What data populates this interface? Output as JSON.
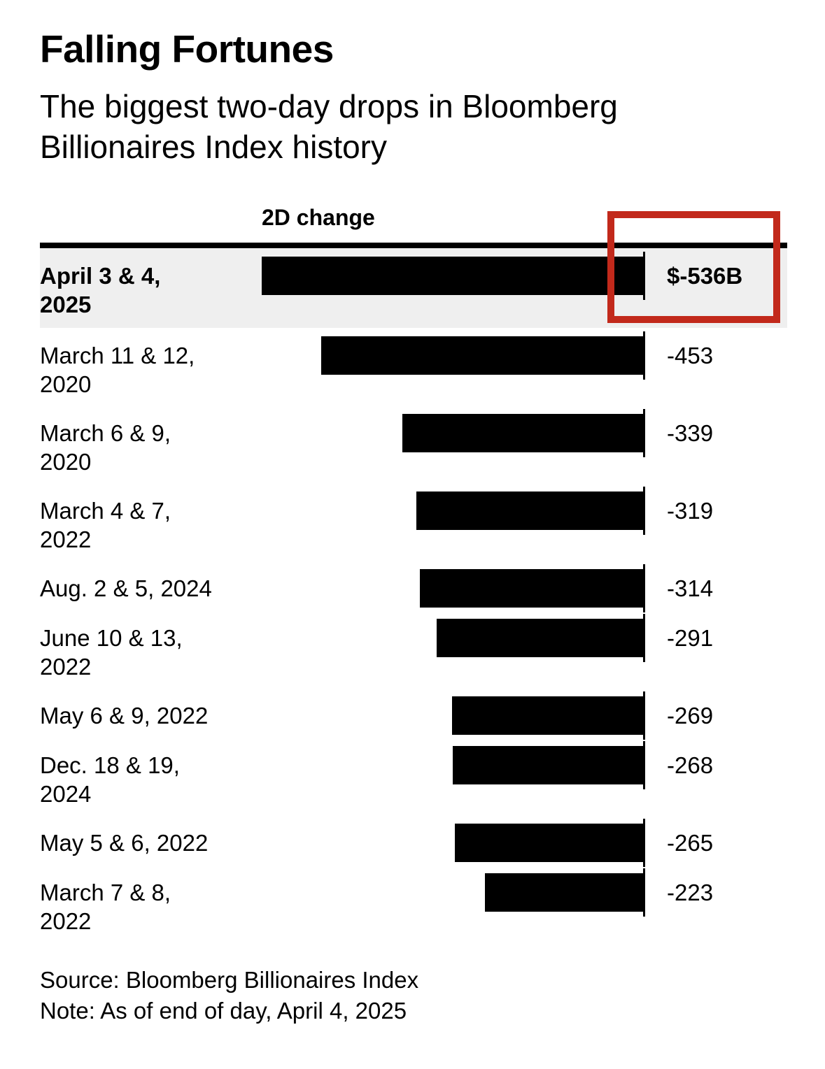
{
  "chart_data": {
    "type": "bar",
    "orientation": "horizontal",
    "title": "Falling Fortunes",
    "subtitle": "The biggest two-day drops in Bloomberg Billionaires Index history",
    "column_header": "2D change",
    "unit": "billions USD",
    "xlim": [
      -560,
      0
    ],
    "grid": false,
    "legend": "none",
    "bar_color": "#000000",
    "highlight": {
      "index": 0,
      "row_bg": "#efefef",
      "box_color": "#c2291b"
    },
    "categories": [
      "April 3 & 4, 2025",
      "March 11 & 12, 2020",
      "March 6 & 9, 2020",
      "March 4 & 7, 2022",
      "Aug. 2 & 5, 2024",
      "June 10 & 13, 2022",
      "May 6 & 9, 2022",
      "Dec. 18 & 19, 2024",
      "May 5 & 6, 2022",
      "March 7 & 8, 2022"
    ],
    "values": [
      -536,
      -453,
      -339,
      -319,
      -314,
      -291,
      -269,
      -268,
      -265,
      -223
    ],
    "rows": [
      {
        "label_lines": [
          "April 3 & 4,",
          "2025"
        ],
        "value": -536,
        "value_label": "$-536B",
        "highlighted": true
      },
      {
        "label_lines": [
          "March 11 & 12,",
          "2020"
        ],
        "value": -453,
        "value_label": "-453",
        "highlighted": false
      },
      {
        "label_lines": [
          "March 6 & 9,",
          "2020"
        ],
        "value": -339,
        "value_label": "-339",
        "highlighted": false
      },
      {
        "label_lines": [
          "March 4 & 7,",
          "2022"
        ],
        "value": -319,
        "value_label": "-319",
        "highlighted": false
      },
      {
        "label_lines": [
          "Aug. 2 & 5, 2024"
        ],
        "value": -314,
        "value_label": "-314",
        "highlighted": false
      },
      {
        "label_lines": [
          "June 10 & 13,",
          "2022"
        ],
        "value": -291,
        "value_label": "-291",
        "highlighted": false
      },
      {
        "label_lines": [
          "May 6 & 9, 2022"
        ],
        "value": -269,
        "value_label": "-269",
        "highlighted": false
      },
      {
        "label_lines": [
          "Dec. 18 & 19,",
          "2024"
        ],
        "value": -268,
        "value_label": "-268",
        "highlighted": false
      },
      {
        "label_lines": [
          "May 5 & 6, 2022"
        ],
        "value": -265,
        "value_label": "-265",
        "highlighted": false
      },
      {
        "label_lines": [
          "March 7 & 8,",
          "2022"
        ],
        "value": -223,
        "value_label": "-223",
        "highlighted": false
      }
    ]
  },
  "footer": {
    "source": "Source: Bloomberg Billionaires Index",
    "note": "Note: As of end of day, April 4, 2025"
  }
}
